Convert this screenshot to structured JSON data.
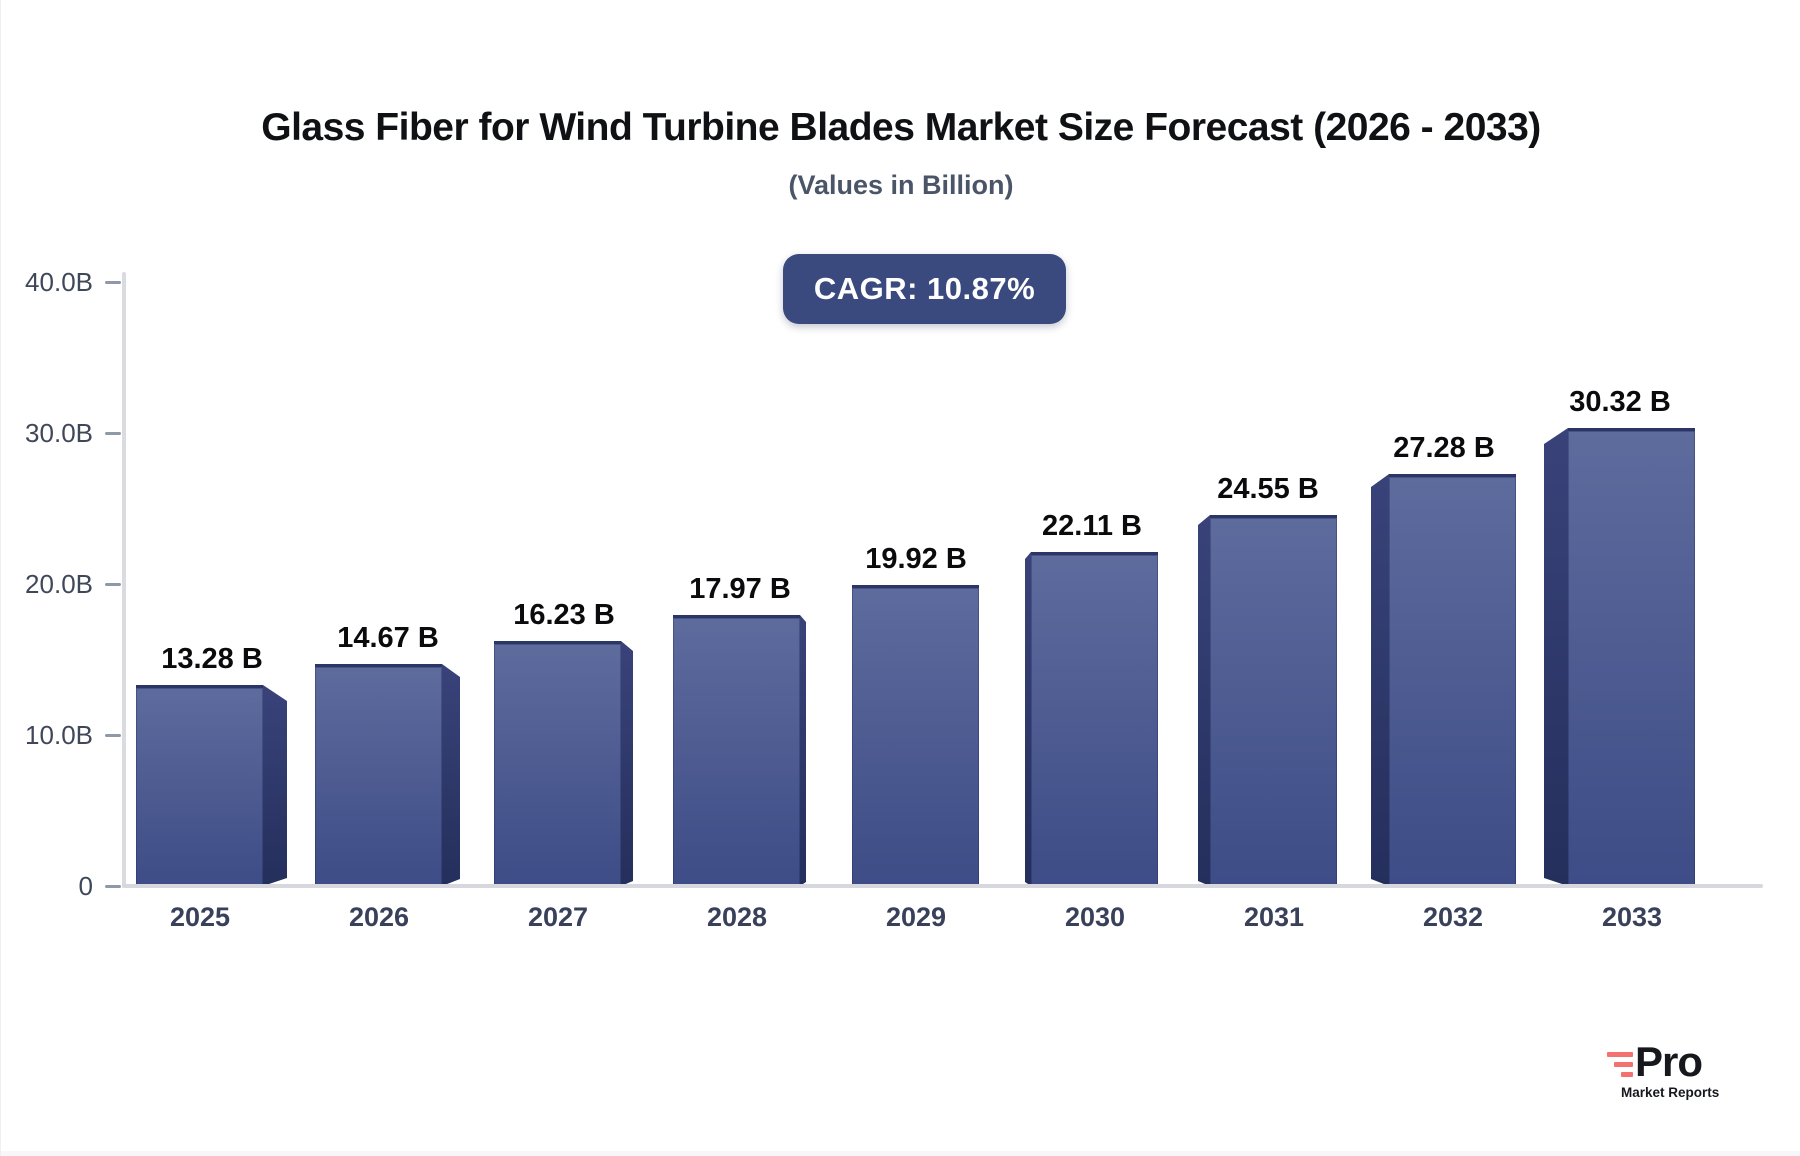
{
  "header": {
    "title": "Glass Fiber for Wind Turbine Blades Market Size Forecast (2026 - 2033)",
    "subtitle": "(Values in Billion)",
    "cagr_badge": "CAGR: 10.87%"
  },
  "chart_data": {
    "type": "bar",
    "title": "Glass Fiber for Wind Turbine Blades Market Size Forecast (2026 - 2033)",
    "subtitle": "(Values in Billion)",
    "cagr_percent": 10.87,
    "categories": [
      "2025",
      "2026",
      "2027",
      "2028",
      "2029",
      "2030",
      "2031",
      "2032",
      "2033"
    ],
    "values": [
      13.28,
      14.67,
      16.23,
      17.97,
      19.92,
      22.11,
      24.55,
      27.28,
      30.32
    ],
    "value_labels": [
      "13.28 B",
      "14.67 B",
      "16.23 B",
      "17.97 B",
      "19.92 B",
      "22.11 B",
      "24.55 B",
      "27.28 B",
      "30.32 B"
    ],
    "y_ticks": [
      {
        "value": 40,
        "label": "40.0B"
      },
      {
        "value": 30,
        "label": "30.0B"
      },
      {
        "value": 20,
        "label": "20.0B"
      },
      {
        "value": 10,
        "label": "10.0B"
      },
      {
        "value": 0,
        "label": "0"
      }
    ],
    "ylim": [
      0,
      40
    ],
    "xlabel": "",
    "ylabel": "",
    "grid": false,
    "legend": "none",
    "colors": {
      "bar_face_top": "#5d6b9d",
      "bar_face_bottom": "#3e4c87",
      "bar_side_top": "#39437a",
      "bar_side_bottom": "#242f5c",
      "bar_top_edge": "#2b3566",
      "badge_bg": "#3a4a7e",
      "badge_text": "#ffffff",
      "axis_line": "#d9dbe1",
      "tick_text": "#3f4859",
      "value_text": "#0b0b0e"
    }
  },
  "logo": {
    "name": "Pro",
    "tagline": "Market Reports",
    "accent_color": "#f3716e"
  }
}
